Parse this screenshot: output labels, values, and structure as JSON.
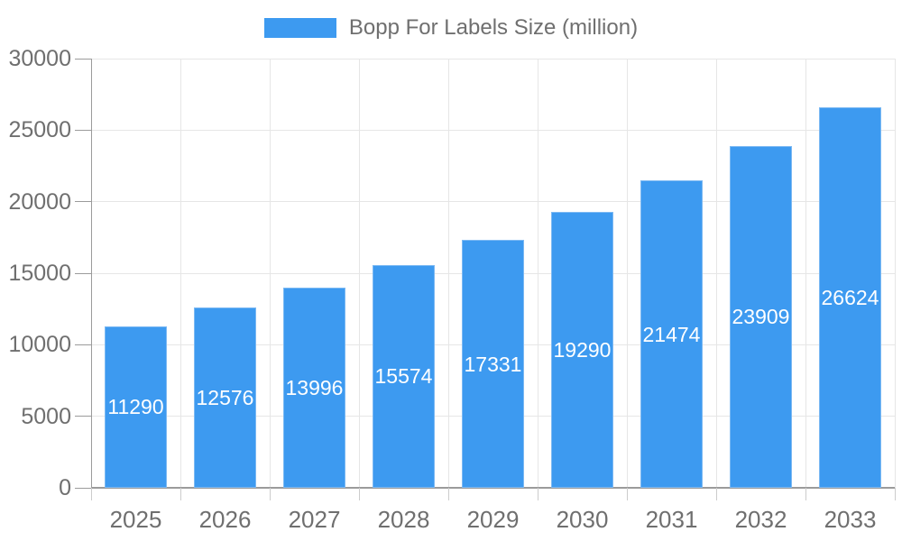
{
  "chart_data": {
    "type": "bar",
    "title": "",
    "legend": {
      "label": "Bopp For Labels Size (million)",
      "position": "top"
    },
    "categories": [
      "2025",
      "2026",
      "2027",
      "2028",
      "2029",
      "2030",
      "2031",
      "2032",
      "2033"
    ],
    "series": [
      {
        "name": "Bopp For Labels Size (million)",
        "values": [
          11290,
          12576,
          13996,
          15574,
          17331,
          19290,
          21474,
          23909,
          26624
        ]
      }
    ],
    "value_labels_shown": true,
    "xlabel": "",
    "ylabel": "",
    "ylim": [
      0,
      30000
    ],
    "yticks": [
      0,
      5000,
      10000,
      15000,
      20000,
      25000,
      30000
    ],
    "grid": true,
    "colors": {
      "bar_fill": "#3D9AF0",
      "bar_edge": "#7CB9F3",
      "value_label_text": "#FFFFFF",
      "axis_label_text": "#6F6F6F",
      "legend_text": "#6F6F6F",
      "gridline": "#E6E6E6",
      "axis_line": "#9B9B9B",
      "x_tick": "#CCCCCC",
      "background": "#FFFFFF"
    }
  }
}
